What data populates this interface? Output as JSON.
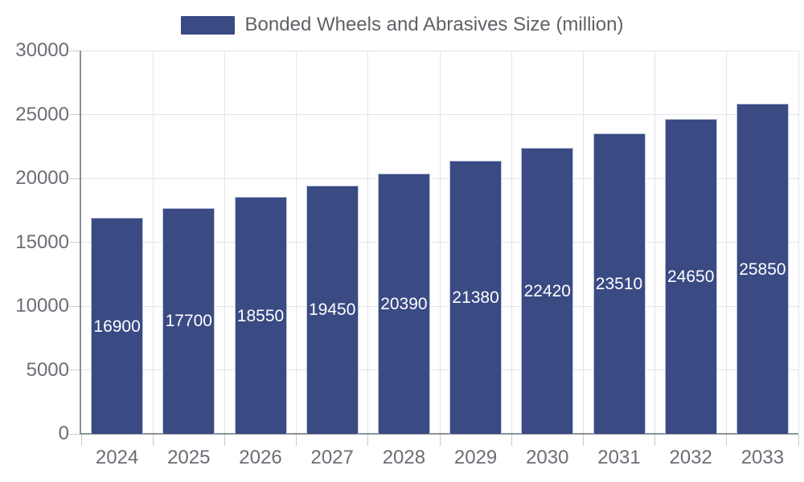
{
  "colors": {
    "bar": "#3a4a83",
    "bar_stroke": "#d6daec",
    "gridline": "#e3e4e8",
    "axis_line": "#8d9097",
    "tick": "#c9cacf",
    "axis_label_text": "#6a6e74",
    "legend_text": "#5e6267",
    "bar_label_text": "#ffffff",
    "background": "#ffffff"
  },
  "chart_data": {
    "type": "bar",
    "title": "",
    "series_name": "Bonded Wheels and Abrasives Size (million)",
    "categories": [
      "2024",
      "2025",
      "2026",
      "2027",
      "2028",
      "2029",
      "2030",
      "2031",
      "2032",
      "2033"
    ],
    "values": [
      16900,
      17700,
      18550,
      19450,
      20390,
      21380,
      22420,
      23510,
      24650,
      25850
    ],
    "xlabel": "",
    "ylabel": "",
    "ylim": [
      0,
      30000
    ],
    "ytick_step": 5000,
    "ytick_labels": [
      "0",
      "5000",
      "10000",
      "15000",
      "20000",
      "25000",
      "30000"
    ],
    "grid": true,
    "legend_position": "top-center",
    "bar_labels_visible": true
  }
}
